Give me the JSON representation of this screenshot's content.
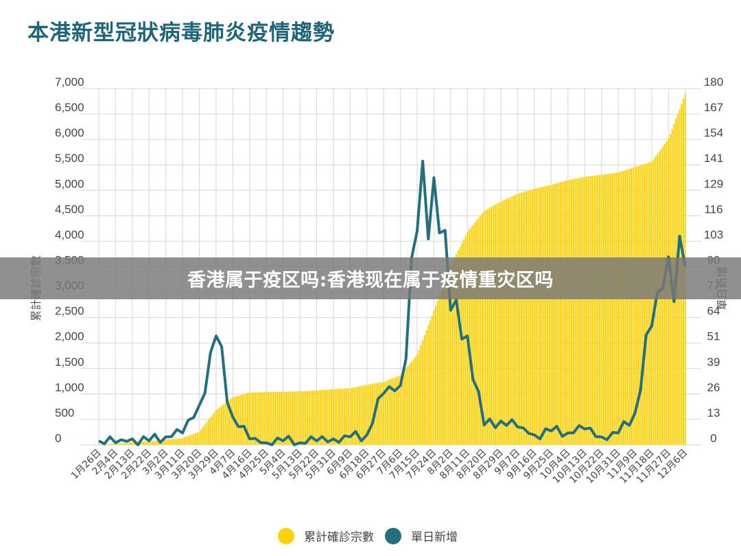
{
  "header": {
    "title": "本港新型冠狀病毒肺炎疫情趨勢"
  },
  "banner": {
    "text": "香港属于疫区吗:香港现在属于疫情重灾区吗"
  },
  "legend": [
    {
      "label": "累計確診宗數",
      "color": "#fdd20a"
    },
    {
      "label": "單日新增",
      "color": "#236f80"
    }
  ],
  "colors": {
    "bars": "#fdd20a",
    "line": "#236f80",
    "grid": "#dcdcdc",
    "title": "#1f6577"
  },
  "chart_data": {
    "type": "bar+line",
    "title": "本港新型冠狀病毒肺炎疫情趨勢",
    "xlabel": "",
    "ylabel": "累計確診宗數",
    "ylabel_right": "單日新增",
    "ylim": [
      0,
      7000
    ],
    "ylim_right": [
      0,
      180
    ],
    "yticks": [
      "0",
      "500",
      "1,000",
      "1,500",
      "2,000",
      "2,500",
      "3,000",
      "3,500",
      "4,000",
      "4,500",
      "5,000",
      "5,500",
      "6,000",
      "6,500",
      "7,000"
    ],
    "yticks_right": [
      "0",
      "13",
      "26",
      "39",
      "51",
      "64",
      "77",
      "90",
      "103",
      "116",
      "129",
      "141",
      "154",
      "167",
      "180"
    ],
    "categories": [
      "1月26日",
      "2月4日",
      "2月13日",
      "2月22日",
      "3月2日",
      "3月11日",
      "3月20日",
      "3月29日",
      "4月7日",
      "4月16日",
      "4月25日",
      "5月4日",
      "5月13日",
      "5月22日",
      "5月31日",
      "6月9日",
      "6月18日",
      "6月27日",
      "7月6日",
      "7月15日",
      "7月24日",
      "8月2日",
      "8月11日",
      "8月20日",
      "8月29日",
      "9月7日",
      "9月16日",
      "9月25日",
      "10月4日",
      "10月13日",
      "10月22日",
      "10月31日",
      "11月9日",
      "11月18日",
      "11月27日",
      "12月6日"
    ],
    "grid": true,
    "legend_position": "bottom",
    "series": [
      {
        "name": "累計確診宗數",
        "type": "bar",
        "axis": "left",
        "values": [
          5,
          21,
          56,
          70,
          100,
          130,
          256,
          682,
          935,
          1024,
          1037,
          1041,
          1050,
          1066,
          1093,
          1110,
          1179,
          1234,
          1366,
          1770,
          2634,
          3524,
          4181,
          4594,
          4779,
          4930,
          5030,
          5107,
          5201,
          5265,
          5305,
          5350,
          5455,
          5560,
          6010,
          6897
        ]
      },
      {
        "name": "單日新增",
        "type": "line",
        "axis": "right",
        "values": [
          2,
          1,
          3,
          2,
          4,
          6,
          20,
          55,
          14,
          3,
          1,
          2,
          1,
          2,
          3,
          4,
          5,
          26,
          30,
          108,
          135,
          68,
          55,
          10,
          12,
          9,
          5,
          7,
          6,
          8,
          4,
          6,
          16,
          60,
          95,
          90
        ]
      }
    ]
  }
}
